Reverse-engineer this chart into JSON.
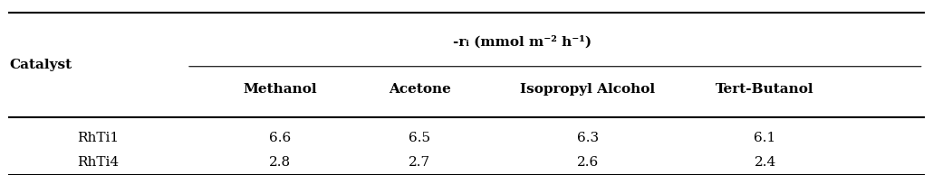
{
  "col_header_top": "-rᵢ (mmol m⁻² h⁻¹)",
  "col_headers": [
    "Methanol",
    "Acetone",
    "Isopropyl Alcohol",
    "Tert-Butanol"
  ],
  "row_label_header": "Catalyst",
  "rows": [
    {
      "label": "RhTi1",
      "values": [
        "6.6",
        "6.5",
        "6.3",
        "6.1"
      ]
    },
    {
      "label": "RhTi4",
      "values": [
        "2.8",
        "2.7",
        "2.6",
        "2.4"
      ]
    }
  ],
  "bg_color": "#ffffff",
  "text_color": "#000000",
  "line_color": "#000000",
  "font_size": 11,
  "header_font_size": 11
}
